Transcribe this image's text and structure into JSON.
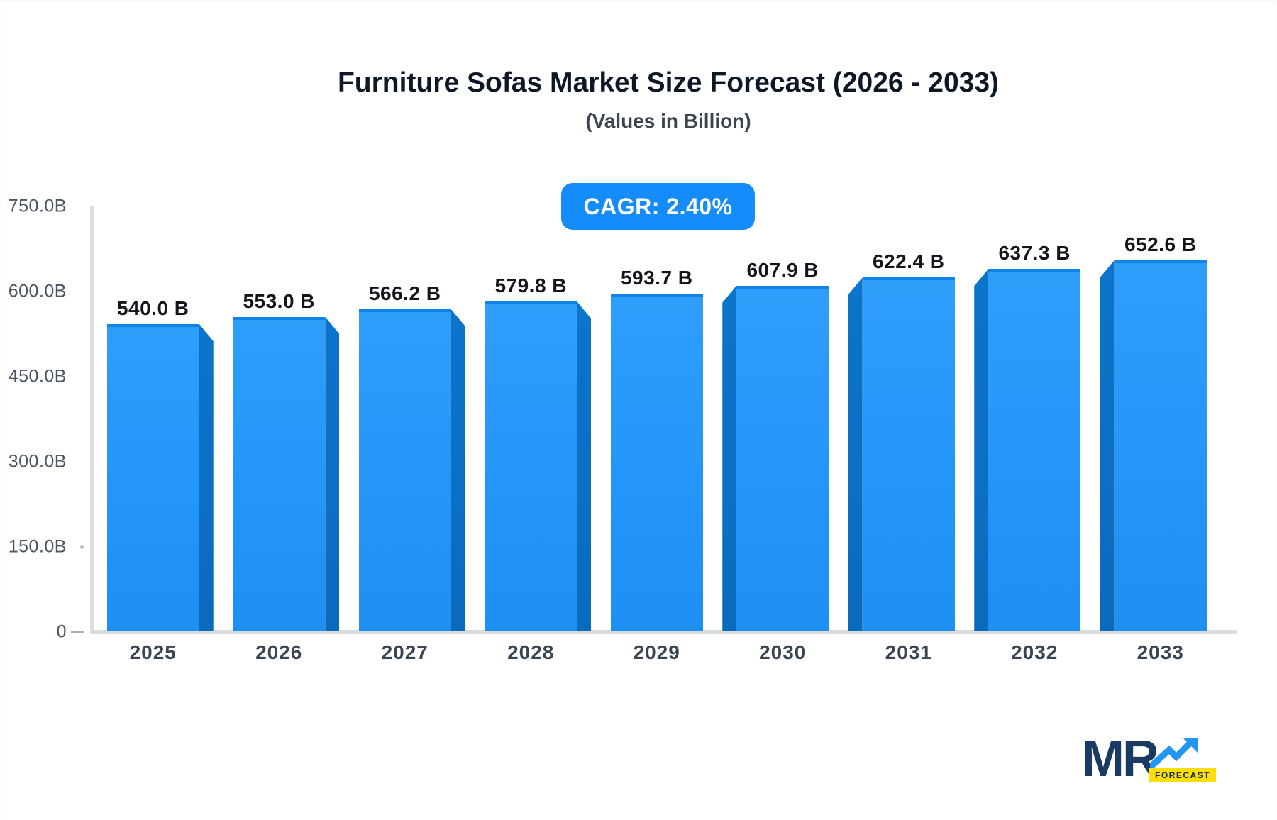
{
  "header": {
    "title": "Furniture Sofas Market Size Forecast (2026 - 2033)",
    "subtitle": "(Values in Billion)",
    "cagr_label": "CAGR: 2.40%"
  },
  "chart_data": {
    "type": "bar",
    "title": "Furniture Sofas Market Size Forecast (2026 - 2033)",
    "subtitle": "(Values in Billion)",
    "cagr_percent": "2.40%",
    "categories": [
      "2025",
      "2026",
      "2027",
      "2028",
      "2029",
      "2030",
      "2031",
      "2032",
      "2033"
    ],
    "values": [
      540.0,
      553.0,
      566.2,
      579.8,
      593.7,
      607.9,
      622.4,
      637.3,
      652.6
    ],
    "bar_labels": [
      "540.0 B",
      "553.0 B",
      "566.2 B",
      "579.8 B",
      "593.7 B",
      "607.9 B",
      "622.4 B",
      "637.3 B",
      "652.6 B"
    ],
    "xlabel": "",
    "ylabel": "",
    "ylim": [
      0,
      750
    ],
    "grid": false,
    "legend_position": "none",
    "y_ticks": [
      {
        "value": 750,
        "label": "750.0B",
        "tick": "none"
      },
      {
        "value": 600,
        "label": "600.0B",
        "tick": "none"
      },
      {
        "value": 450,
        "label": "450.0B",
        "tick": "none"
      },
      {
        "value": 300,
        "label": "300.0B",
        "tick": "none"
      },
      {
        "value": 150,
        "label": "150.0B",
        "tick": "dot"
      },
      {
        "value": 0,
        "label": "0",
        "tick": "dash"
      }
    ],
    "colors": {
      "bar_face": "#2699FA",
      "bar_side": "#0B6FC3",
      "bar_top_edge": "#0E84E9",
      "axis_line": "#DCDEE1",
      "baseline": "#D9DBDE",
      "badge_background": "#158CFB",
      "badge_text": "#FFFFFF"
    }
  },
  "logo": {
    "text": "MR",
    "sub_text": "FORECAST",
    "colors": {
      "navy": "#1A3A63",
      "arrow_blue": "#2196F3",
      "yellow": "#FFDE07"
    }
  }
}
